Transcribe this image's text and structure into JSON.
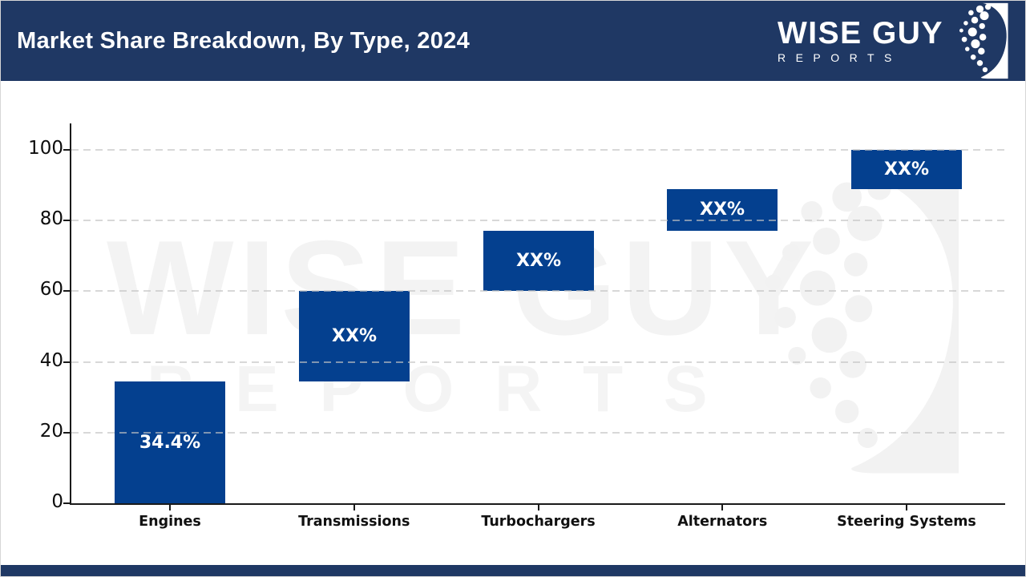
{
  "header": {
    "title": "Market Share Breakdown, By Type, 2024",
    "logo": {
      "wordmark": "WISE GUY",
      "subtext": "REPORTS"
    }
  },
  "watermark": {
    "wordmark": "WISE GUY",
    "subtext": "R E P O R T S"
  },
  "colors": {
    "header_navy": "#1f3864",
    "footer_navy": "#1f3864",
    "bar_blue": "#04408f",
    "bar_label_white": "#ffffff",
    "axis_black": "#1a1a1a"
  },
  "chart_data": {
    "type": "bar",
    "subtype": "waterfall (floating segment bars)",
    "title": "Market Share Breakdown, By Type, 2024",
    "categories": [
      "Engines",
      "Transmissions",
      "Turbochargers",
      "Alternators",
      "Steering Systems"
    ],
    "bars": [
      {
        "category": "Engines",
        "start": 0,
        "end": 34.4,
        "label": "34.4%"
      },
      {
        "category": "Transmissions",
        "start": 34.4,
        "end": 60,
        "label": "XX%"
      },
      {
        "category": "Turbochargers",
        "start": 60,
        "end": 77,
        "label": "XX%"
      },
      {
        "category": "Alternators",
        "start": 77,
        "end": 89,
        "label": "XX%"
      },
      {
        "category": "Steering Systems",
        "start": 89,
        "end": 100,
        "label": "XX%"
      }
    ],
    "xlabel": "",
    "ylabel": "",
    "ylim": [
      0,
      100
    ],
    "yticks": [
      0,
      20,
      40,
      60,
      80,
      100
    ],
    "grid": "horizontal dashed light-gray",
    "legend": "none"
  }
}
